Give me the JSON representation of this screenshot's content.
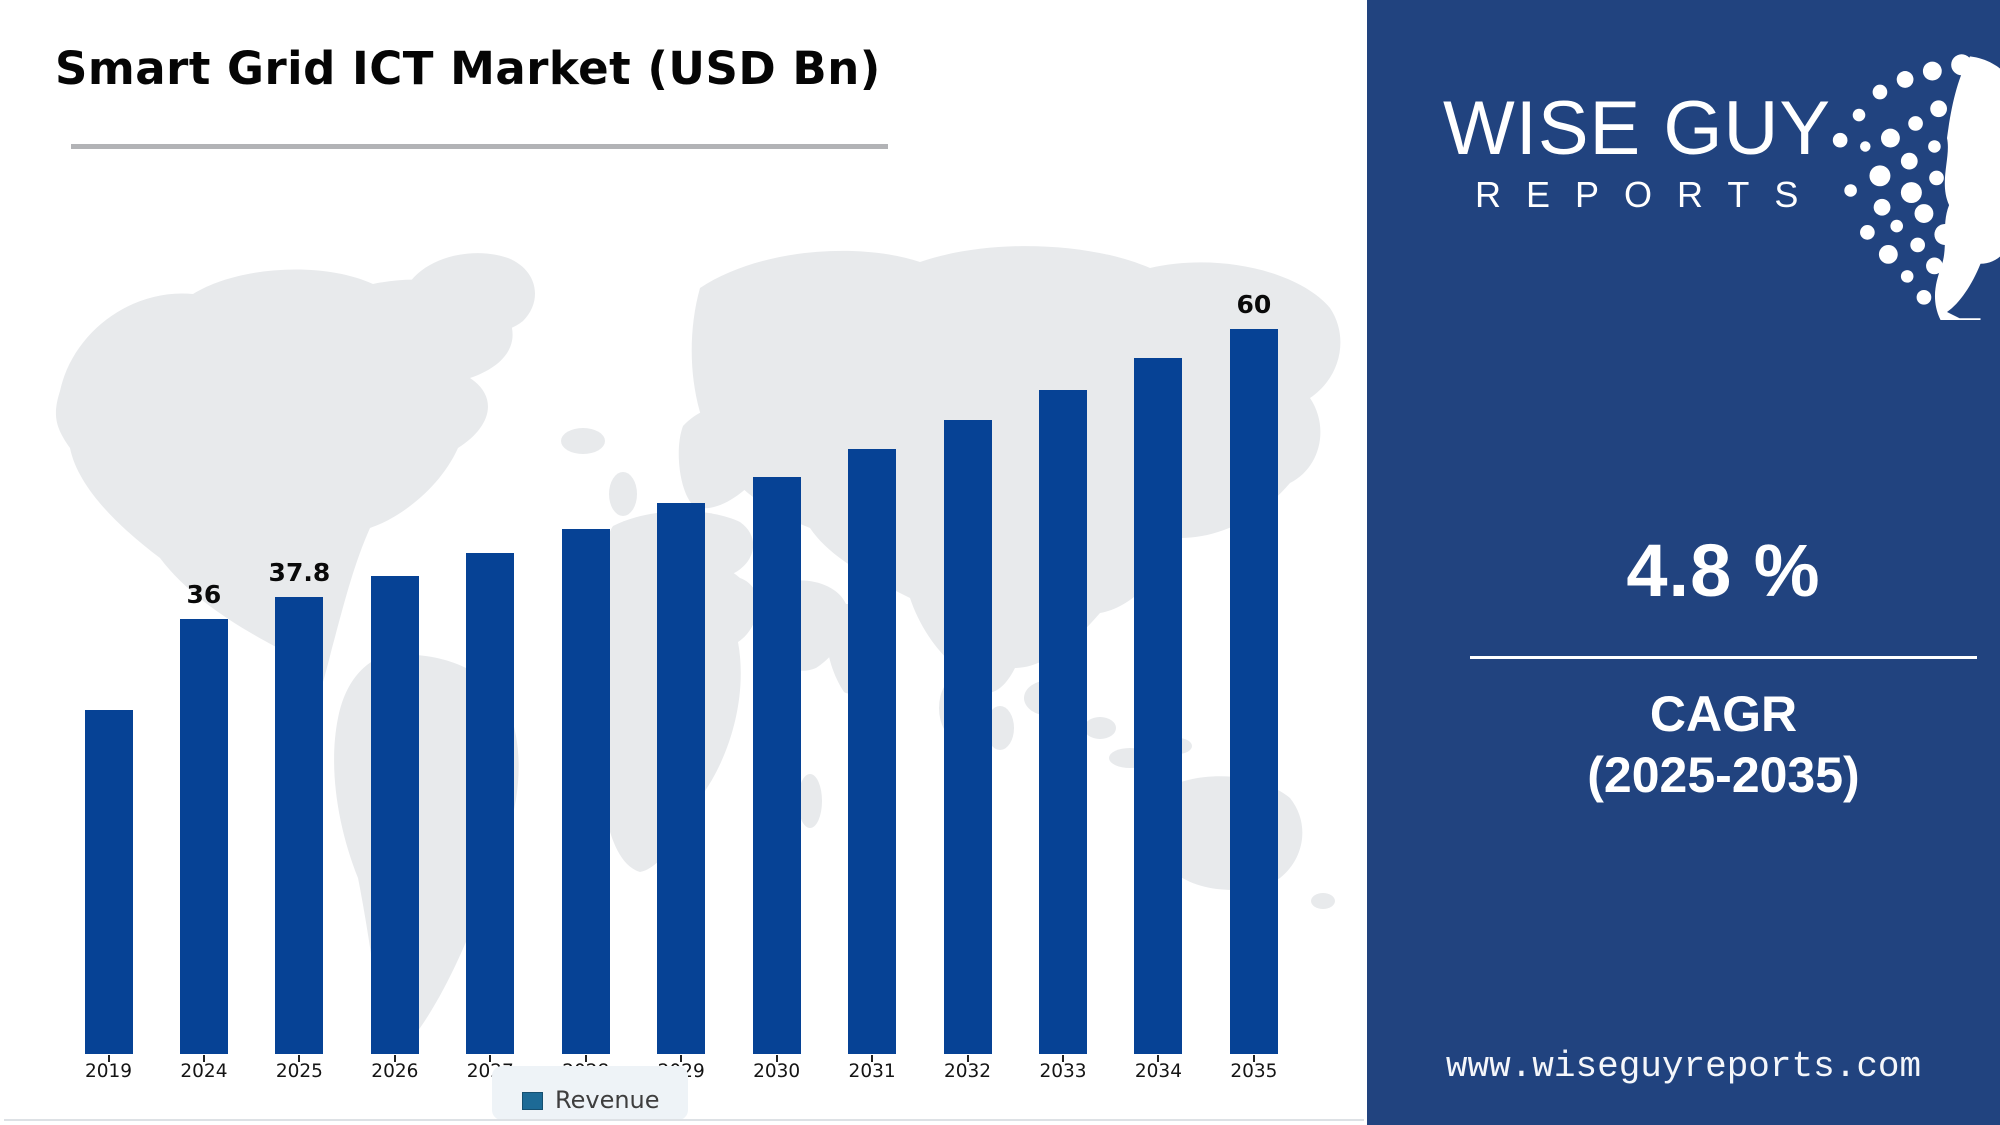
{
  "title": "Smart Grid ICT Market (USD Bn)",
  "chart_data": {
    "type": "bar",
    "title": "Smart Grid ICT Market (USD Bn)",
    "unit": "USD Bn",
    "categories": [
      "2019",
      "2024",
      "2025",
      "2026",
      "2027",
      "2028",
      "2029",
      "2030",
      "2031",
      "2032",
      "2033",
      "2034",
      "2035"
    ],
    "values": [
      28.5,
      36,
      37.8,
      39.6,
      41.5,
      43.5,
      45.6,
      47.8,
      50.1,
      52.5,
      55.0,
      57.6,
      60
    ],
    "bar_labels": [
      "",
      "36",
      "37.8",
      "",
      "",
      "",
      "",
      "",
      "",
      "",
      "",
      "",
      "60"
    ],
    "bar_color": "#064295",
    "ylim": [
      0,
      65
    ],
    "grid": false,
    "legend_position": "bottom",
    "legend": [
      {
        "label": "Revenue",
        "color": "#1d6a96"
      }
    ]
  },
  "sidebar": {
    "background": "#21437f",
    "logo": {
      "line1": "WISE GUY",
      "line2": "REPORTS"
    },
    "cagr": {
      "value": "4.8 %",
      "label_line1": "CAGR",
      "label_line2": "(2025-2035)"
    },
    "website": "www.wiseguyreports.com"
  }
}
